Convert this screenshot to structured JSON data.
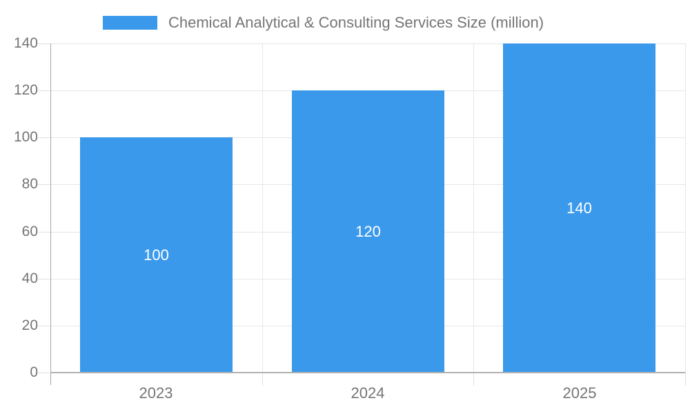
{
  "chart_data": {
    "type": "bar",
    "title": "Chemical Analytical & Consulting Services Size (million)",
    "categories": [
      "2023",
      "2024",
      "2025"
    ],
    "series": [
      {
        "name": "Chemical Analytical & Consulting Services Size (million)",
        "values": [
          100,
          120,
          140
        ]
      }
    ],
    "bar_labels": [
      "100",
      "120",
      "140"
    ],
    "yticks": [
      0,
      20,
      40,
      60,
      80,
      100,
      120,
      140
    ],
    "ylim": [
      0,
      140
    ],
    "xlabel": "",
    "ylabel": "",
    "grid": true,
    "legend_position": "top"
  },
  "colors": {
    "bar": "#3B99EC",
    "bar_label_text": "#FFFFFF",
    "axis_text": "#757575",
    "gridline": "#E6E6E6",
    "tick": "#E0E0E0",
    "y_axis_line": "#A6A6A6",
    "baseline": "#B0B0B0",
    "background": "#FFFFFF"
  }
}
